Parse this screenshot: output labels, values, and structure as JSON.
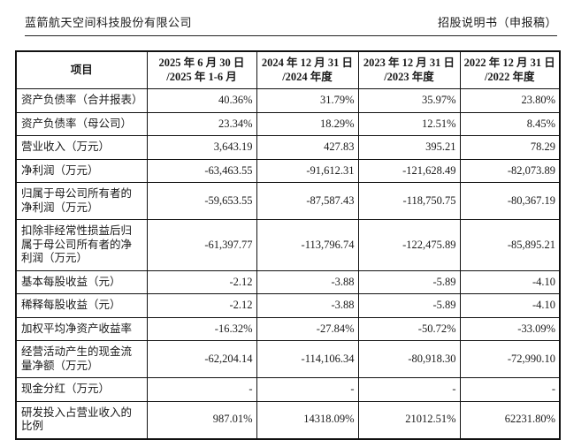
{
  "page_header": {
    "company": "蓝箭航天空间科技股份有限公司",
    "doc_title": "招股说明书（申报稿）"
  },
  "table": {
    "columns": [
      "项目",
      "2025 年 6 月 30 日\n/2025 年 1-6 月",
      "2024 年 12 月 31 日\n/2024 年度",
      "2023 年 12 月 31 日\n/2023 年度",
      "2022 年 12 月 31 日\n/2022 年度"
    ],
    "rows": [
      {
        "label": "资产负债率（合并报表）",
        "values": [
          "40.36%",
          "31.79%",
          "35.97%",
          "23.80%"
        ]
      },
      {
        "label": "资产负债率（母公司）",
        "values": [
          "23.34%",
          "18.29%",
          "12.51%",
          "8.45%"
        ]
      },
      {
        "label": "营业收入（万元）",
        "values": [
          "3,643.19",
          "427.83",
          "395.21",
          "78.29"
        ]
      },
      {
        "label": "净利润（万元）",
        "values": [
          "-63,463.55",
          "-91,612.31",
          "-121,628.49",
          "-82,073.89"
        ]
      },
      {
        "label": "归属于母公司所有者的\n净利润（万元）",
        "values": [
          "-59,653.55",
          "-87,587.43",
          "-118,750.75",
          "-80,367.19"
        ]
      },
      {
        "label": "扣除非经常性损益后归\n属于母公司所有者的净\n利润（万元）",
        "values": [
          "-61,397.77",
          "-113,796.74",
          "-122,475.89",
          "-85,895.21"
        ]
      },
      {
        "label": "基本每股收益（元）",
        "values": [
          "-2.12",
          "-3.88",
          "-5.89",
          "-4.10"
        ]
      },
      {
        "label": "稀释每股收益（元）",
        "values": [
          "-2.12",
          "-3.88",
          "-5.89",
          "-4.10"
        ]
      },
      {
        "label": "加权平均净资产收益率",
        "values": [
          "-16.32%",
          "-27.84%",
          "-50.72%",
          "-33.09%"
        ]
      },
      {
        "label": "经营活动产生的现金流\n量净额（万元）",
        "values": [
          "-62,204.14",
          "-114,106.34",
          "-80,918.30",
          "-72,990.10"
        ]
      },
      {
        "label": "现金分红（万元）",
        "values": [
          "-",
          "-",
          "-",
          "-"
        ]
      },
      {
        "label": "研发投入占营业收入的\n比例",
        "values": [
          "987.01%",
          "14318.09%",
          "21012.51%",
          "62231.80%"
        ]
      }
    ]
  }
}
